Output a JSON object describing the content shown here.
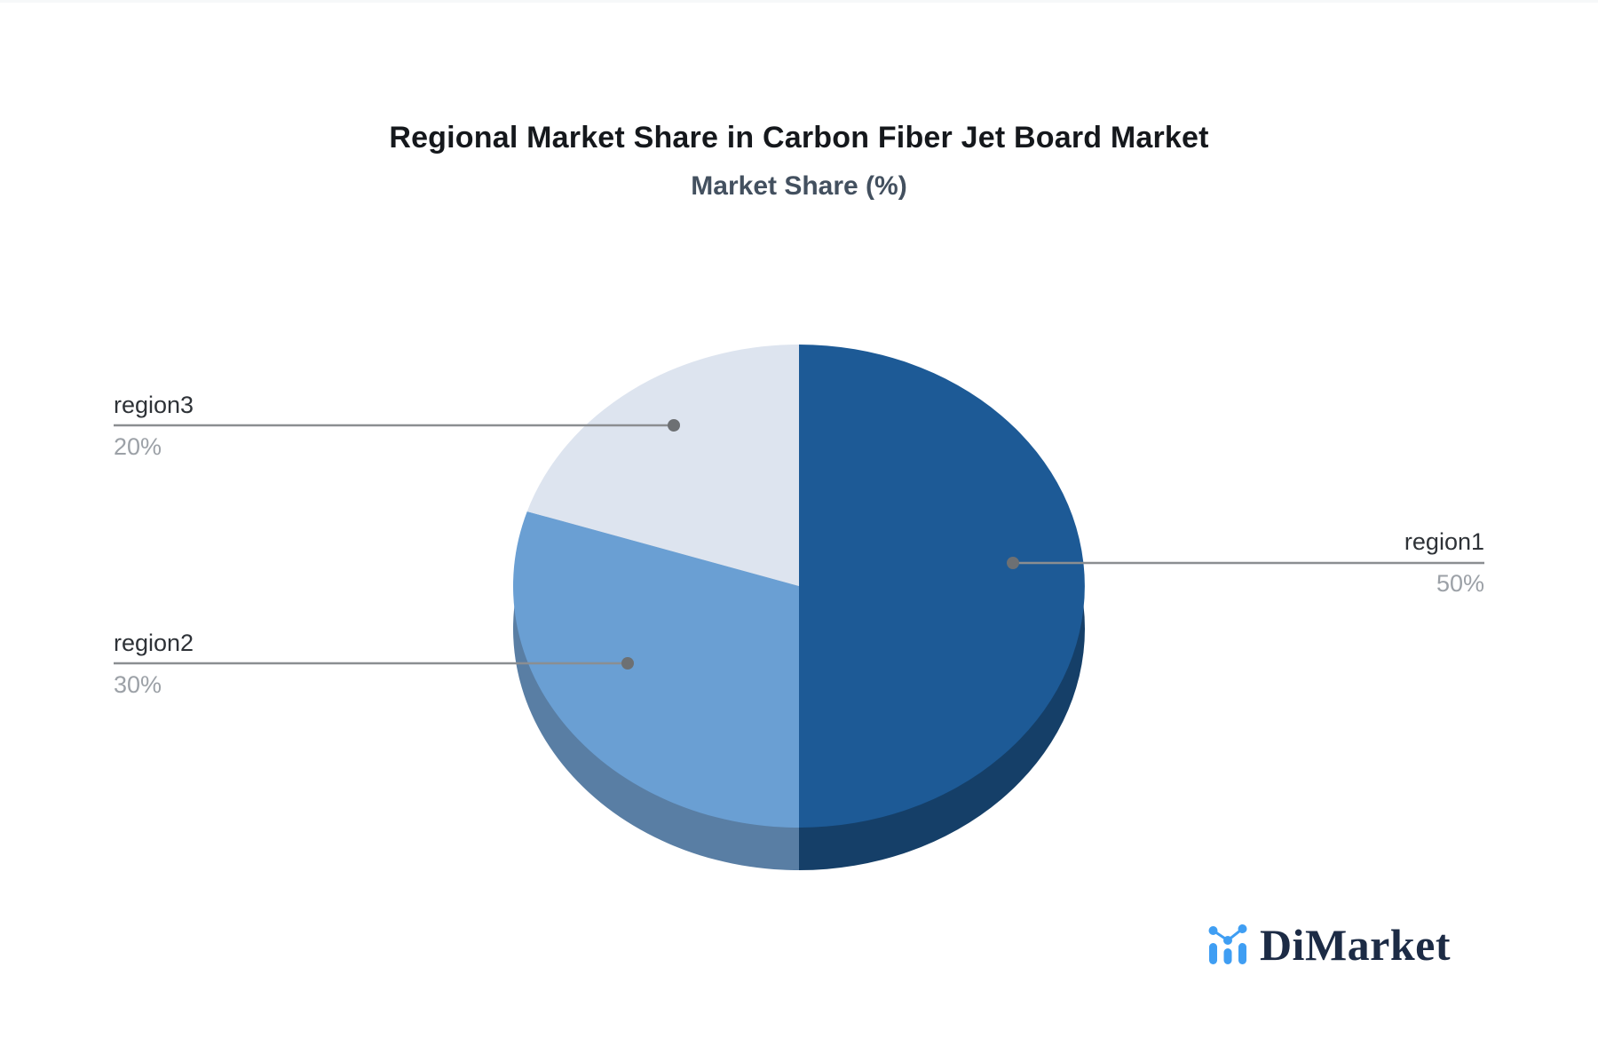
{
  "chart_data": {
    "type": "pie",
    "style": "3d",
    "title": "Regional Market Share in Carbon Fiber Jet Board Market",
    "subtitle": "Market Share (%)",
    "unit": "%",
    "legend_position": "callout-labels",
    "slices": [
      {
        "label": "region1",
        "value": 50,
        "display": "50%",
        "color": "#1d5a96",
        "depth_color": "#153f68"
      },
      {
        "label": "region2",
        "value": 30,
        "display": "30%",
        "color": "#6a9fd3",
        "depth_color": "#597ea4"
      },
      {
        "label": "region3",
        "value": 20,
        "display": "20%",
        "color": "#dde4ef",
        "depth_color": "#b9c3d3"
      }
    ]
  },
  "branding": {
    "logo_text": "DiMarket",
    "logo_icon": "bar-line-chart-icon",
    "logo_icon_color": "#3f9ef3",
    "logo_text_color": "#1c2b45"
  },
  "colors": {
    "background": "#ffffff",
    "title_text": "#15181c",
    "subtitle_text": "#43505f",
    "callout_label_text": "#2e3237",
    "callout_pct_text": "#9ca1a7",
    "leader_line": "#8b8e91",
    "leader_dot": "#6d7073",
    "top_border": "#f6f8f9"
  }
}
